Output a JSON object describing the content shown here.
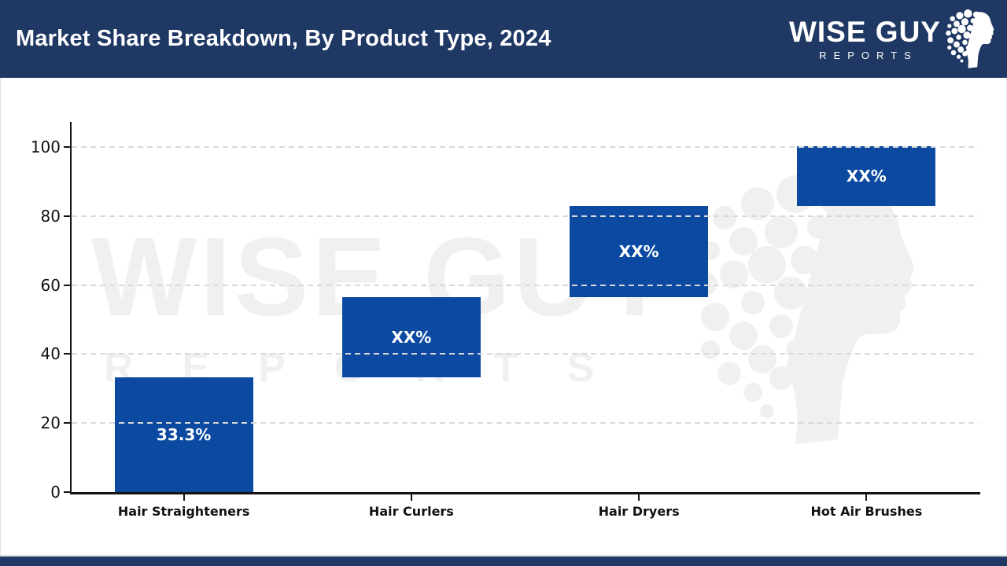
{
  "header": {
    "title": "Market Share Breakdown, By Product Type, 2024",
    "logo_line1": "WISE GUY",
    "logo_line2": "REPORTS"
  },
  "watermark": {
    "line1": "WISE GUY",
    "line2": "REPORTS"
  },
  "chart_data": {
    "type": "bar",
    "variant": "waterfall",
    "title": "Market Share Breakdown, By Product Type, 2024",
    "categories": [
      "Hair Straighteners",
      "Hair Curlers",
      "Hair Dryers",
      "Hot Air Brushes"
    ],
    "segments": [
      {
        "category": "Hair Straighteners",
        "start": 0,
        "end": 33.3,
        "label": "33.3%"
      },
      {
        "category": "Hair Curlers",
        "start": 33.3,
        "end": 56.6,
        "label": "XX%"
      },
      {
        "category": "Hair Dryers",
        "start": 56.6,
        "end": 83.0,
        "label": "XX%"
      },
      {
        "category": "Hot Air Brushes",
        "start": 83.0,
        "end": 100.3,
        "label": "XX%"
      }
    ],
    "yticks": [
      0,
      20,
      40,
      60,
      80,
      100
    ],
    "ylim": [
      0,
      107
    ],
    "grid": "horizontal-dashed",
    "legend": "none",
    "xlabel": "",
    "ylabel": ""
  },
  "colors": {
    "header_bg": "#1f3864",
    "footer_bg": "#1f3864",
    "bar_fill": "#0c4aa2",
    "bar_label": "#ffffff",
    "gridline": "#d9d9d9",
    "axis": "#141414",
    "watermark": "#f0f0f0"
  }
}
